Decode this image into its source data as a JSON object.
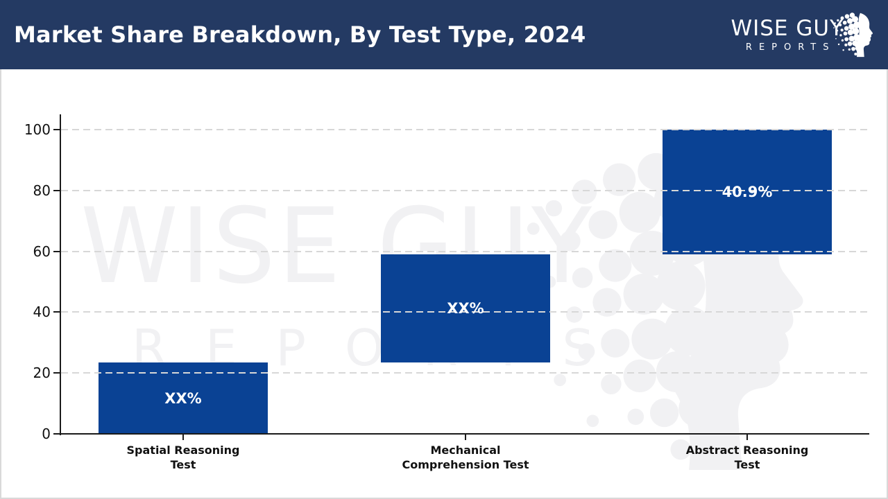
{
  "header": {
    "title": "Market Share Breakdown, By Test Type, 2024",
    "logo": {
      "name": "WISE GUY",
      "tagline": "REPORTS"
    }
  },
  "watermark": {
    "name": "WISE GUY",
    "tagline": "REPORTS"
  },
  "chart_data": {
    "type": "bar",
    "subtype": "floating-waterfall",
    "title": "Market Share Breakdown, By Test Type, 2024",
    "categories": [
      [
        "Spatial Reasoning",
        "Test"
      ],
      [
        "Mechanical",
        "Comprehension Test"
      ],
      [
        "Abstract Reasoning",
        "Test"
      ]
    ],
    "segments": [
      {
        "category": "Spatial Reasoning Test",
        "from": 0,
        "to": 23.4,
        "label": "XX%"
      },
      {
        "category": "Mechanical Comprehension Test",
        "from": 23.4,
        "to": 59.1,
        "label": "XX%"
      },
      {
        "category": "Abstract Reasoning Test",
        "from": 59.1,
        "to": 100,
        "label": "40.9%"
      }
    ],
    "yticks": [
      0,
      20,
      40,
      60,
      80,
      100
    ],
    "ylim": [
      0,
      105
    ],
    "xlabel": "",
    "ylabel": "",
    "grid": "horizontal-dashed",
    "legend": "none",
    "colors": {
      "bar": "#0a4294",
      "value_label": "#ffffff",
      "axis": "#1a1a1a",
      "gridline": "#d7d7d7",
      "tick_label": "#111111"
    }
  },
  "theme": {
    "header_bg": "#243a63",
    "header_text": "#ffffff",
    "body_bg": "#ffffff",
    "border": "#d9d9d9",
    "watermark": "#f1f1f3"
  }
}
